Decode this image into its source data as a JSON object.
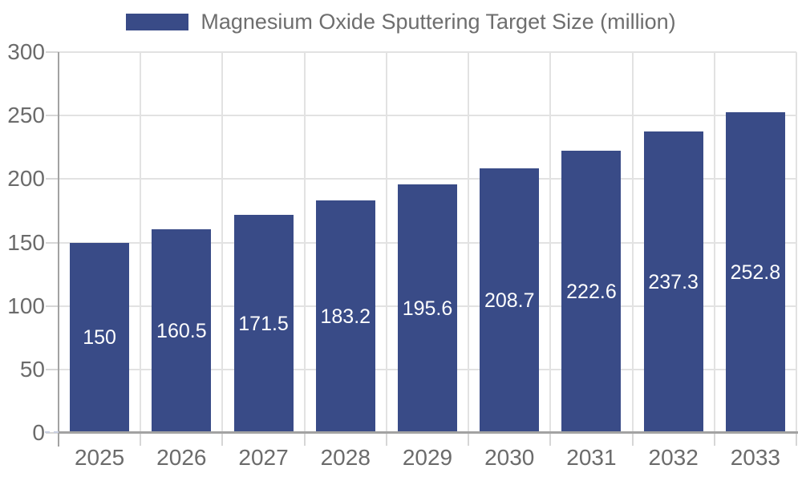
{
  "chart_data": {
    "type": "bar",
    "legend": "Magnesium Oxide Sputtering Target Size (million)",
    "legend_position": "top",
    "categories": [
      "2025",
      "2026",
      "2027",
      "2028",
      "2029",
      "2030",
      "2031",
      "2032",
      "2033"
    ],
    "values": [
      150,
      160.5,
      171.5,
      183.2,
      195.6,
      208.7,
      222.6,
      237.3,
      252.8
    ],
    "value_labels": [
      "150",
      "160.5",
      "171.5",
      "183.2",
      "195.6",
      "208.7",
      "222.6",
      "237.3",
      "252.8"
    ],
    "title": "",
    "xlabel": "",
    "ylabel": "",
    "ylim": [
      0,
      300
    ],
    "y_ticks": [
      0,
      50,
      100,
      150,
      200,
      250,
      300
    ],
    "grid": true,
    "colors": {
      "bar": "#394b87",
      "axis": "#a2a2a2",
      "grid": "#e2e2e2",
      "tick": "#d6d6d6",
      "tick_label": "#6b6b6b",
      "legend_text": "#6e6e6e",
      "value_label": "#ffffff",
      "background": "#ffffff"
    }
  }
}
